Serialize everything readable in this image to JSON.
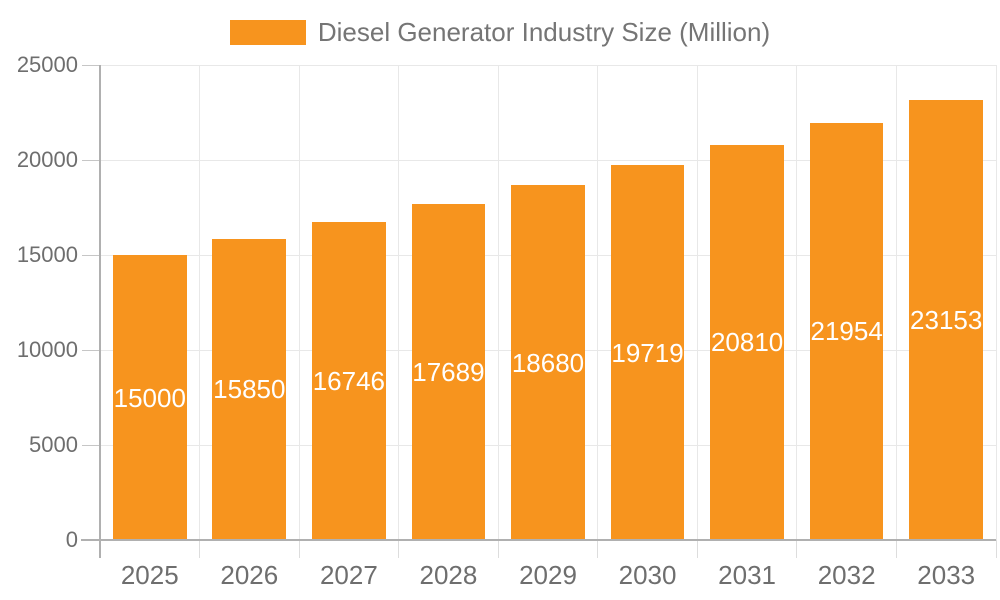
{
  "legend": {
    "label": "Diesel Generator Industry Size (Million)",
    "swatch_color": "#F7941E"
  },
  "colors": {
    "bar": "#F7941E",
    "value_label": "#FFFFFF",
    "axis_line": "#B0B0B0",
    "gridline": "#E8E8E8",
    "axis_text": "#6E6E6E",
    "legend_text": "#757575"
  },
  "chart_data": {
    "type": "bar",
    "title": "Diesel Generator Industry Size (Million)",
    "legend_position": "top",
    "grid": true,
    "categories": [
      "2025",
      "2026",
      "2027",
      "2028",
      "2029",
      "2030",
      "2031",
      "2032",
      "2033"
    ],
    "series": [
      {
        "name": "Diesel Generator Industry Size (Million)",
        "color": "#F7941E",
        "values": [
          15000,
          15850,
          16746,
          17689,
          18680,
          19719,
          20810,
          21954,
          23153
        ]
      }
    ],
    "xlabel": "",
    "ylabel": "",
    "ylim": [
      0,
      25000
    ],
    "yticks": [
      0,
      5000,
      10000,
      15000,
      20000,
      25000
    ],
    "value_labels_shown_inside_bars": true
  }
}
